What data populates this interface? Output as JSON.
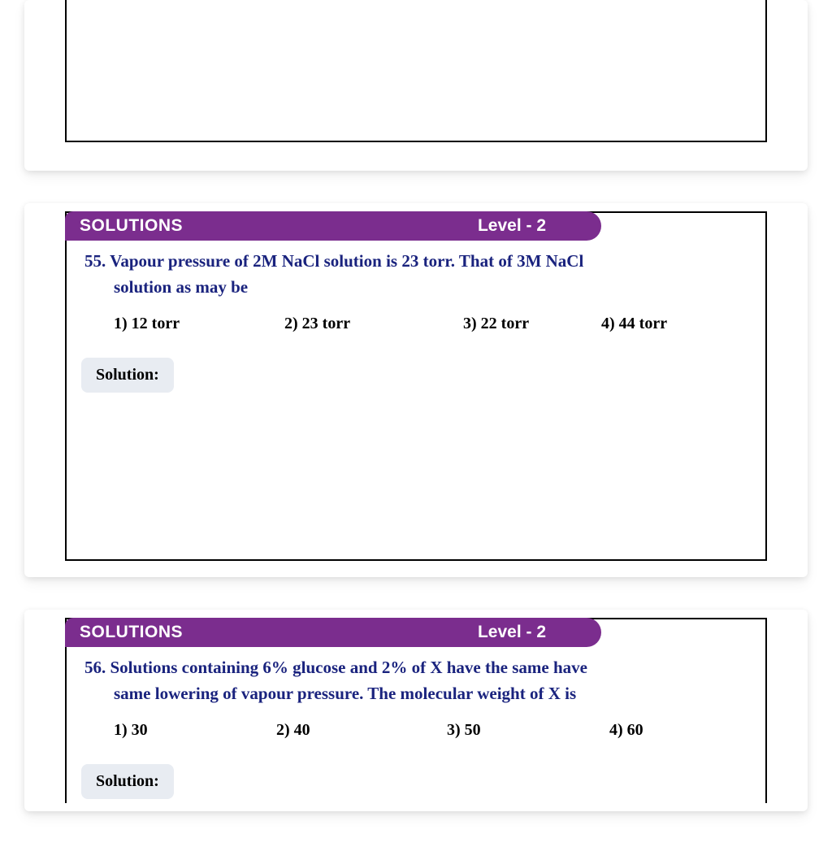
{
  "colors": {
    "header_bg": "#7b2d8e",
    "header_text": "#ffffff",
    "question_text": "#1a237e",
    "option_text": "#000000",
    "solution_bg": "#e8ecf2",
    "card_bg": "#ffffff",
    "border": "#000000"
  },
  "typography": {
    "header_fontsize": 21,
    "question_fontsize": 21,
    "option_fontsize": 20
  },
  "cards": [
    {
      "type": "empty"
    },
    {
      "type": "question",
      "header_left": "SOLUTIONS",
      "header_right": "Level - 2",
      "number": "55.",
      "text_line1": "Vapour pressure of 2M NaCl solution is 23 torr. That of 3M NaCl",
      "text_line2": "solution as may be",
      "options": [
        "1) 12 torr",
        "2) 23 torr",
        "3) 22 torr",
        "4) 44 torr"
      ],
      "solution_label": "Solution:"
    },
    {
      "type": "question",
      "header_left": "SOLUTIONS",
      "header_right": "Level - 2",
      "number": "56.",
      "text_line1": "Solutions containing 6% glucose and 2% of X have the same have",
      "text_line2": "same lowering of vapour pressure. The molecular weight of X is",
      "options": [
        "1) 30",
        "2) 40",
        "3) 50",
        "4) 60"
      ],
      "solution_label": "Solution:"
    }
  ]
}
